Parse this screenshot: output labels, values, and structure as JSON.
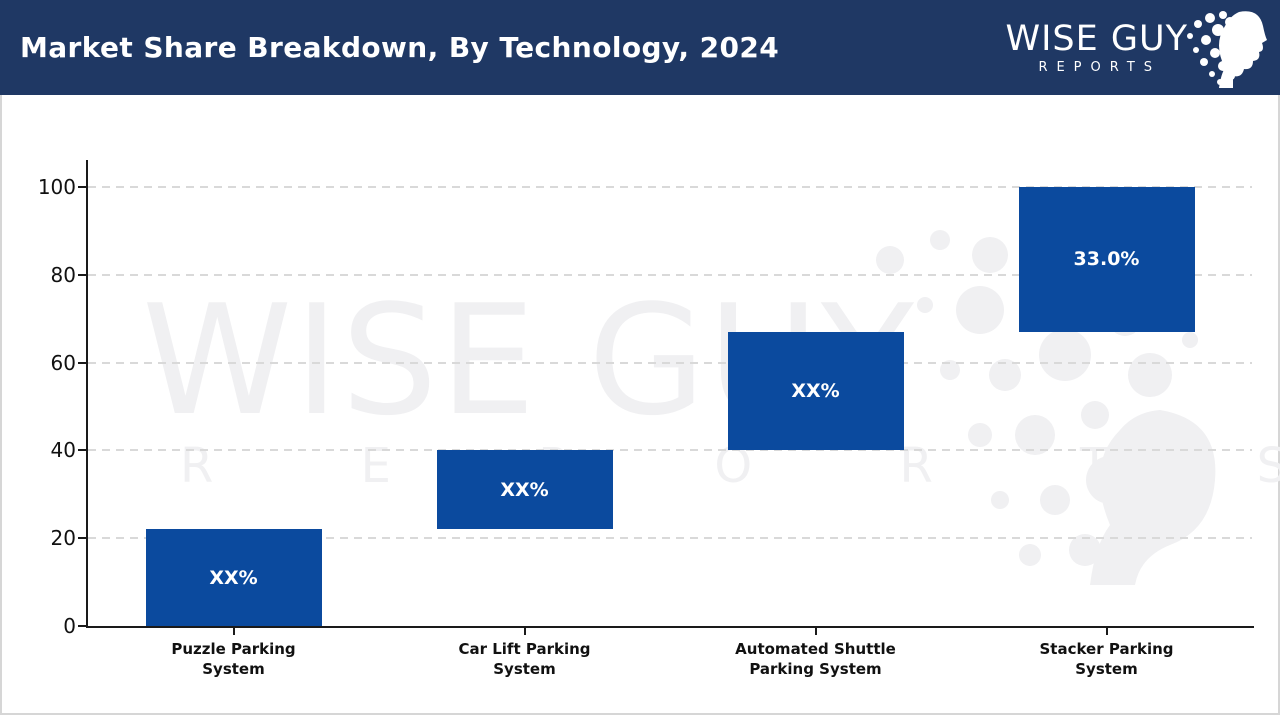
{
  "header": {
    "title": "Market Share Breakdown, By Technology, 2024",
    "bg_color": "#1f3864",
    "logo": {
      "line1": "WISE GUY",
      "line2": "REPORTS"
    }
  },
  "watermark": {
    "line1": "WISE GUY",
    "line2": "R E P O R T S"
  },
  "chart_data": {
    "type": "bar",
    "subtype": "floating-waterfall",
    "title": "Market Share Breakdown, By Technology, 2024",
    "categories": [
      "Puzzle Parking\nSystem",
      "Car Lift Parking\nSystem",
      "Automated Shuttle\nParking System",
      "Stacker Parking\nSystem"
    ],
    "bars": [
      {
        "category": "Puzzle Parking System",
        "start": 0,
        "end": 22,
        "label": "XX%"
      },
      {
        "category": "Car Lift Parking System",
        "start": 22,
        "end": 40,
        "label": "XX%"
      },
      {
        "category": "Automated Shuttle Parking System",
        "start": 40,
        "end": 67,
        "label": "XX%"
      },
      {
        "category": "Stacker Parking System",
        "start": 67,
        "end": 100,
        "label": "33.0%"
      }
    ],
    "yticks": [
      0,
      20,
      40,
      60,
      80,
      100
    ],
    "ylim": [
      0,
      105
    ],
    "xlabel": "",
    "ylabel": "",
    "grid": true,
    "grid_style": "dashed",
    "grid_color": "#d9d9d9",
    "bar_color": "#0b4a9e",
    "bar_label_color": "#ffffff",
    "axis_color": "#1a1a1a"
  }
}
